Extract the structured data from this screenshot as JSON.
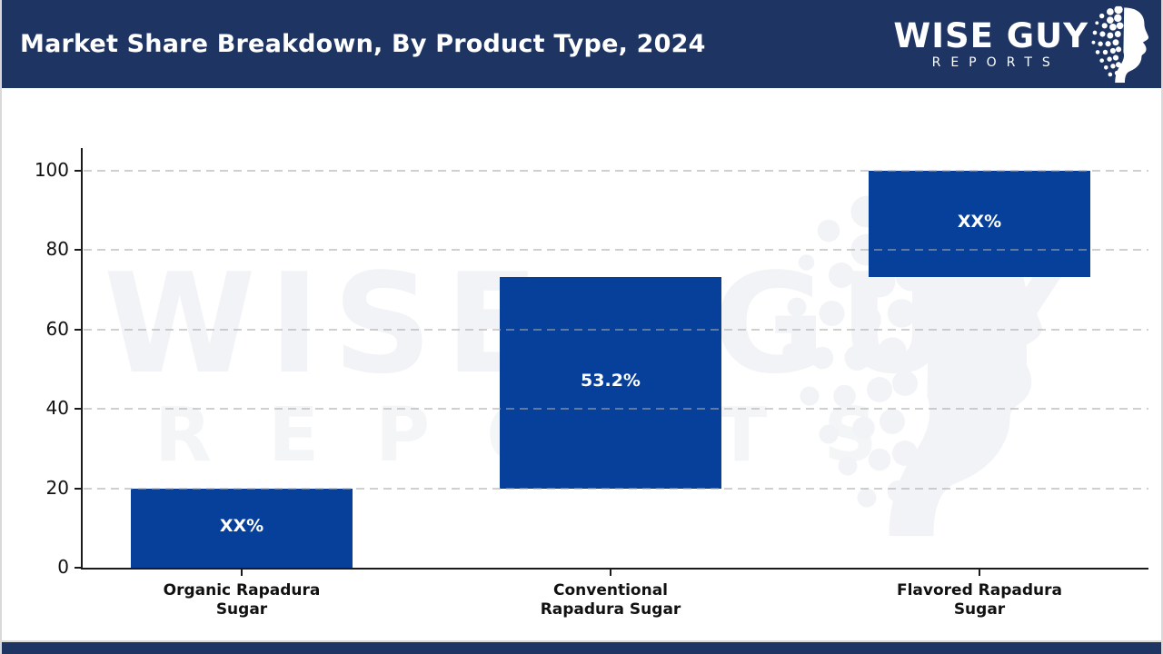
{
  "header": {
    "title": "Market Share Breakdown, By Product Type, 2024",
    "logo": {
      "line1": "WISE GUY",
      "line2": "REPORTS"
    }
  },
  "watermark": {
    "line1": "WISE GUY",
    "line2": "REPORTS"
  },
  "colors": {
    "header_bg": "#1e3564",
    "bar_fill": "#06409a",
    "bar_label_text": "#ffffff",
    "axis": "#1a1a1a",
    "grid": "rgba(170,170,170,0.55)",
    "watermark": "#f2f3f6"
  },
  "chart_data": {
    "type": "bar",
    "subtype": "waterfall",
    "title": "Market Share Breakdown, By Product Type, 2024",
    "xlabel": "",
    "ylabel": "",
    "ylim": [
      0,
      105
    ],
    "y_ticks": [
      0,
      20,
      40,
      60,
      80,
      100
    ],
    "grid": "horizontal dashed",
    "legend": "none",
    "categories": [
      "Organic Rapadura Sugar",
      "Conventional Rapadura Sugar",
      "Flavored Rapadura Sugar"
    ],
    "bars": [
      {
        "category_lines": [
          "Organic Rapadura",
          "Sugar"
        ],
        "start": 0,
        "end": 20,
        "label": "XX%"
      },
      {
        "category_lines": [
          "Conventional",
          "Rapadura Sugar"
        ],
        "start": 20,
        "end": 73.2,
        "label": "53.2%"
      },
      {
        "category_lines": [
          "Flavored Rapadura",
          "Sugar"
        ],
        "start": 73.2,
        "end": 100,
        "label": "XX%"
      }
    ]
  }
}
